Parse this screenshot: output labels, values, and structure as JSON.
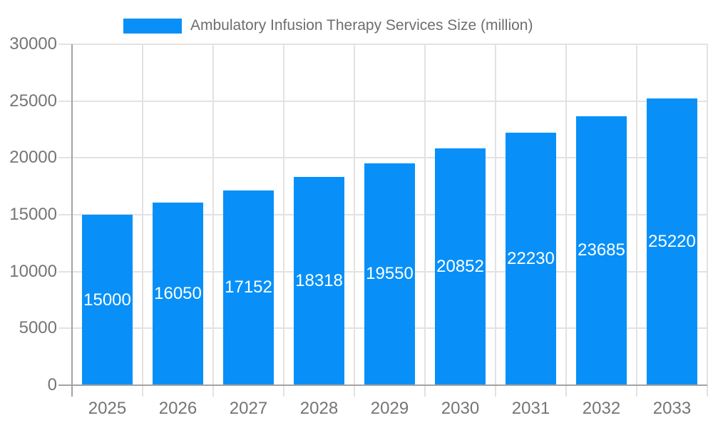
{
  "chart_data": {
    "type": "bar",
    "title": "",
    "legend": {
      "label": "Ambulatory Infusion Therapy Services Size (million)",
      "position": "top"
    },
    "categories": [
      "2025",
      "2026",
      "2027",
      "2028",
      "2029",
      "2030",
      "2031",
      "2032",
      "2033"
    ],
    "values": [
      15000,
      16050,
      17152,
      18318,
      19550,
      20852,
      22230,
      23685,
      25220
    ],
    "series": [
      {
        "name": "Ambulatory Infusion Therapy Services Size (million)",
        "values": [
          15000,
          16050,
          17152,
          18318,
          19550,
          20852,
          22230,
          23685,
          25220
        ]
      }
    ],
    "value_labels_visible": true,
    "xlabel": "",
    "ylabel": "",
    "ylim": [
      0,
      30000
    ],
    "yticks": [
      0,
      5000,
      10000,
      15000,
      20000,
      25000,
      30000
    ],
    "grid": true,
    "colors": {
      "bar": "#0890f8",
      "grid_line": "#e2e2e2",
      "axis_line": "#a3a3a3",
      "tick_label": "#757575",
      "legend_text": "#6e6e6e",
      "value_label": "#ffffff",
      "background": "#ffffff"
    }
  }
}
